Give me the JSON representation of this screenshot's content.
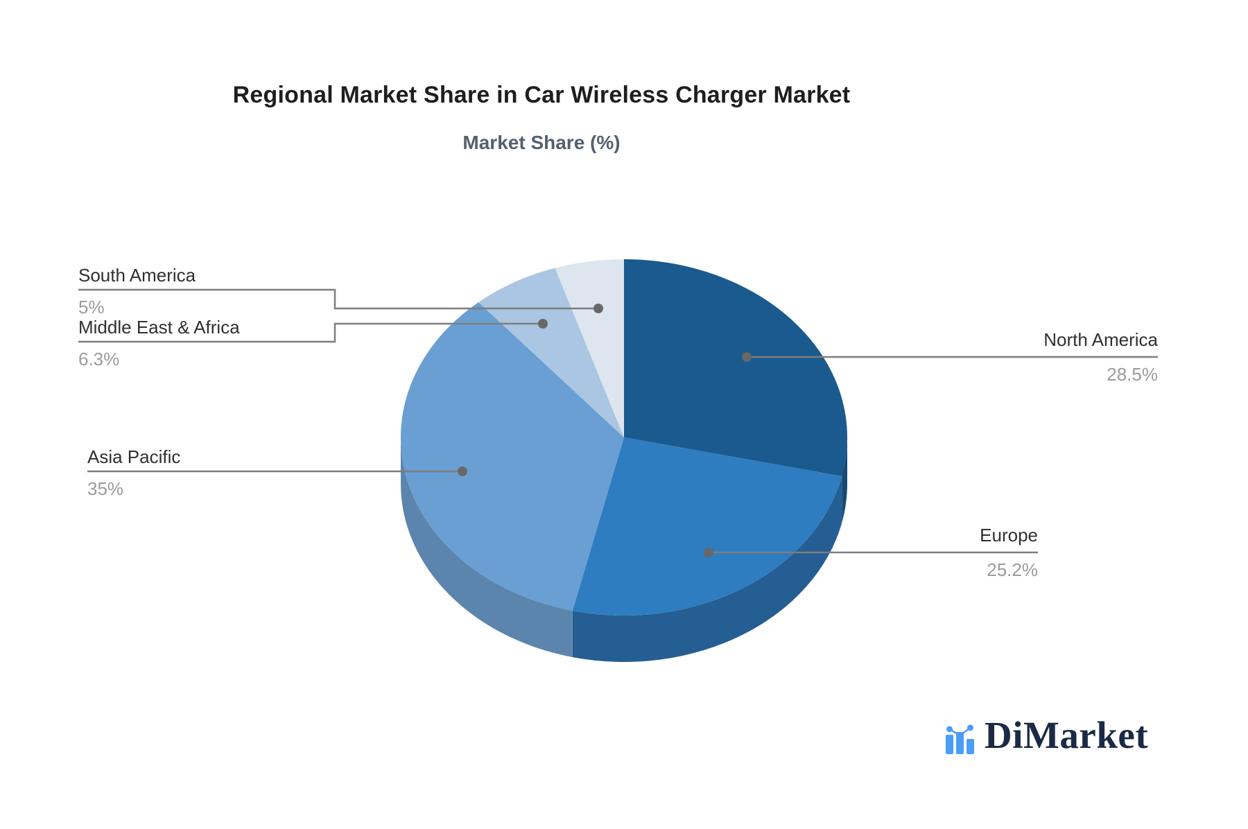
{
  "title": "Regional Market Share in Car Wireless Charger Market",
  "subtitle": "Market Share (%)",
  "watermark": {
    "brand": "DiMarket"
  },
  "chart_data": {
    "type": "pie",
    "title": "Regional Market Share in Car Wireless Charger Market",
    "subtitle": "Market Share (%)",
    "unit": "%",
    "effect": "3d",
    "legend_position": "none",
    "label_style": "callout with leader lines, name above line, value below",
    "start_angle_deg": -90,
    "clockwise": true,
    "slices": [
      {
        "label": "North America",
        "value": 28.5,
        "display": "28.5%",
        "color": "#1a5a8e",
        "side_color": "#164a73"
      },
      {
        "label": "Europe",
        "value": 25.2,
        "display": "25.2%",
        "color": "#2e7dc1",
        "side_color": "#255e92"
      },
      {
        "label": "Asia Pacific",
        "value": 35,
        "display": "35%",
        "color": "#699fd3",
        "side_color": "#5c85ad"
      },
      {
        "label": "Middle East & Africa",
        "value": 6.3,
        "display": "6.3%",
        "color": "#aac6e2",
        "side_color": "#8fb3d6"
      },
      {
        "label": "South America",
        "value": 5,
        "display": "5%",
        "color": "#dde6ef",
        "side_color": "#c2cfdd"
      }
    ]
  },
  "styles": {
    "title_color": "#1e1e1e",
    "subtitle_color": "#53616e",
    "label_color": "#2f2f2f",
    "value_color": "#9b9b9b",
    "leader_line_color": "#7d7d7d",
    "leader_dot_color": "#686868",
    "brand_navy": "#1b2a44",
    "brand_blue": "#4b9ef6",
    "background": "#ffffff"
  }
}
